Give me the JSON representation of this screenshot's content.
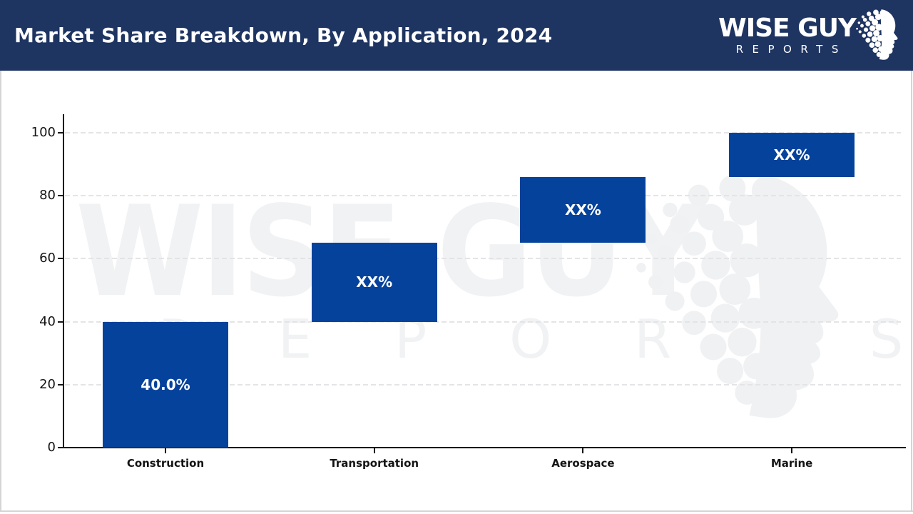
{
  "header": {
    "title": "Market Share Breakdown, By Application, 2024",
    "logo_line1": "WISE GUY",
    "logo_line2": "REPORTS",
    "bg_color": "#1e3461"
  },
  "watermark": {
    "line1": "WISE GUY",
    "line2": "R E P O R T S"
  },
  "chart_data": {
    "type": "bar",
    "subtype": "waterfall",
    "title": "Market Share Breakdown, By Application, 2024",
    "categories": [
      "Construction",
      "Transportation",
      "Aerospace",
      "Marine"
    ],
    "segments": [
      {
        "category": "Construction",
        "start": 0,
        "end": 40,
        "label": "40.0%"
      },
      {
        "category": "Transportation",
        "start": 40,
        "end": 65,
        "label": "XX%"
      },
      {
        "category": "Aerospace",
        "start": 65,
        "end": 86,
        "label": "XX%"
      },
      {
        "category": "Marine",
        "start": 86,
        "end": 100,
        "label": "XX%"
      }
    ],
    "ylim": [
      0,
      100
    ],
    "yticks": [
      0,
      20,
      40,
      60,
      80,
      100
    ],
    "grid": "horizontal-dashed",
    "legend": "none",
    "bar_color": "#05429b",
    "bar_label_color": "#ffffff",
    "axis_color": "#141414",
    "gridline_color": "#e4e4e6",
    "watermark_color": "#f1f2f4"
  }
}
